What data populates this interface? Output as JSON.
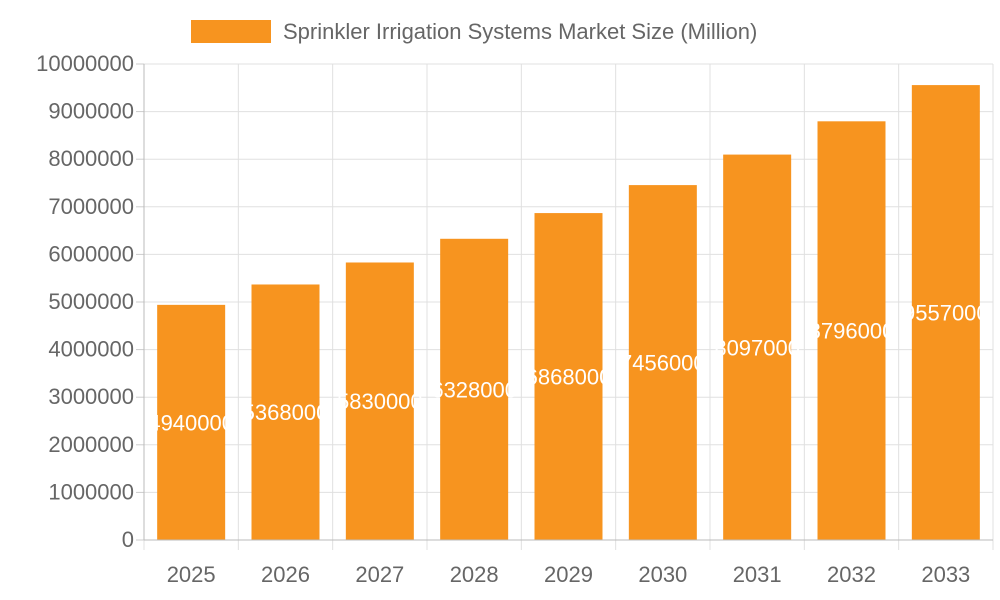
{
  "chart_data": {
    "type": "bar",
    "title": "",
    "xlabel": "",
    "ylabel": "",
    "categories": [
      "2025",
      "2026",
      "2027",
      "2028",
      "2029",
      "2030",
      "2031",
      "2032",
      "2033"
    ],
    "series": [
      {
        "name": "Sprinkler Irrigation Systems Market Size (Million)",
        "values": [
          4940000,
          5368000,
          5830000,
          6328000,
          6868000,
          7456000,
          8097000,
          8796000,
          9557000
        ],
        "color": "#f7941f"
      }
    ],
    "ylim": [
      0,
      10000000
    ],
    "yticks": [
      0,
      1000000,
      2000000,
      3000000,
      4000000,
      5000000,
      6000000,
      7000000,
      8000000,
      9000000,
      10000000
    ],
    "grid": true,
    "legend": "top",
    "data_labels": true,
    "data_label_color": "#ffffff"
  }
}
